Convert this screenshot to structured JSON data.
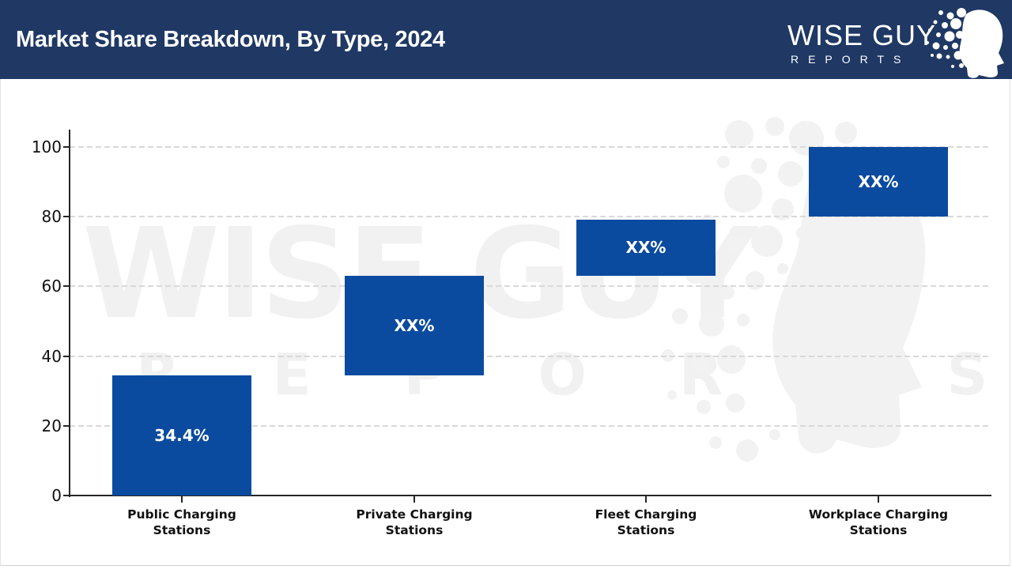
{
  "header": {
    "title": "Market Share Breakdown, By Type, 2024",
    "logo": {
      "line1": "WISE GUY",
      "line2": "REPORTS"
    }
  },
  "watermark": {
    "line1": "WISE GUY",
    "line2": "R E P O R T S"
  },
  "colors": {
    "header_bg": "#1f3864",
    "bar": "#0b4b9f",
    "gridline": "#d9d9d9",
    "axis": "#262626",
    "watermark": "#f1f1f1",
    "bar_label": "#ffffff"
  },
  "chart_data": {
    "type": "bar",
    "subtype": "waterfall",
    "title": "Market Share Breakdown, By Type, 2024",
    "categories": [
      "Public Charging\nStations",
      "Private Charging\nStations",
      "Fleet Charging\nStations",
      "Workplace Charging\nStations"
    ],
    "segments": [
      {
        "category": "Public Charging Stations",
        "start": 0,
        "end": 34.4,
        "label": "34.4%"
      },
      {
        "category": "Private Charging Stations",
        "start": 34.4,
        "end": 63.0,
        "label": "XX%"
      },
      {
        "category": "Fleet Charging Stations",
        "start": 63.0,
        "end": 79.2,
        "label": "XX%"
      },
      {
        "category": "Workplace Charging Stations",
        "start": 80.0,
        "end": 100.0,
        "label": "XX%"
      }
    ],
    "yticks": [
      0,
      20,
      40,
      60,
      80,
      100
    ],
    "ylim": [
      0,
      105
    ],
    "xlabel": "",
    "ylabel": "",
    "grid": "horizontal-dashed",
    "legend": "none"
  }
}
